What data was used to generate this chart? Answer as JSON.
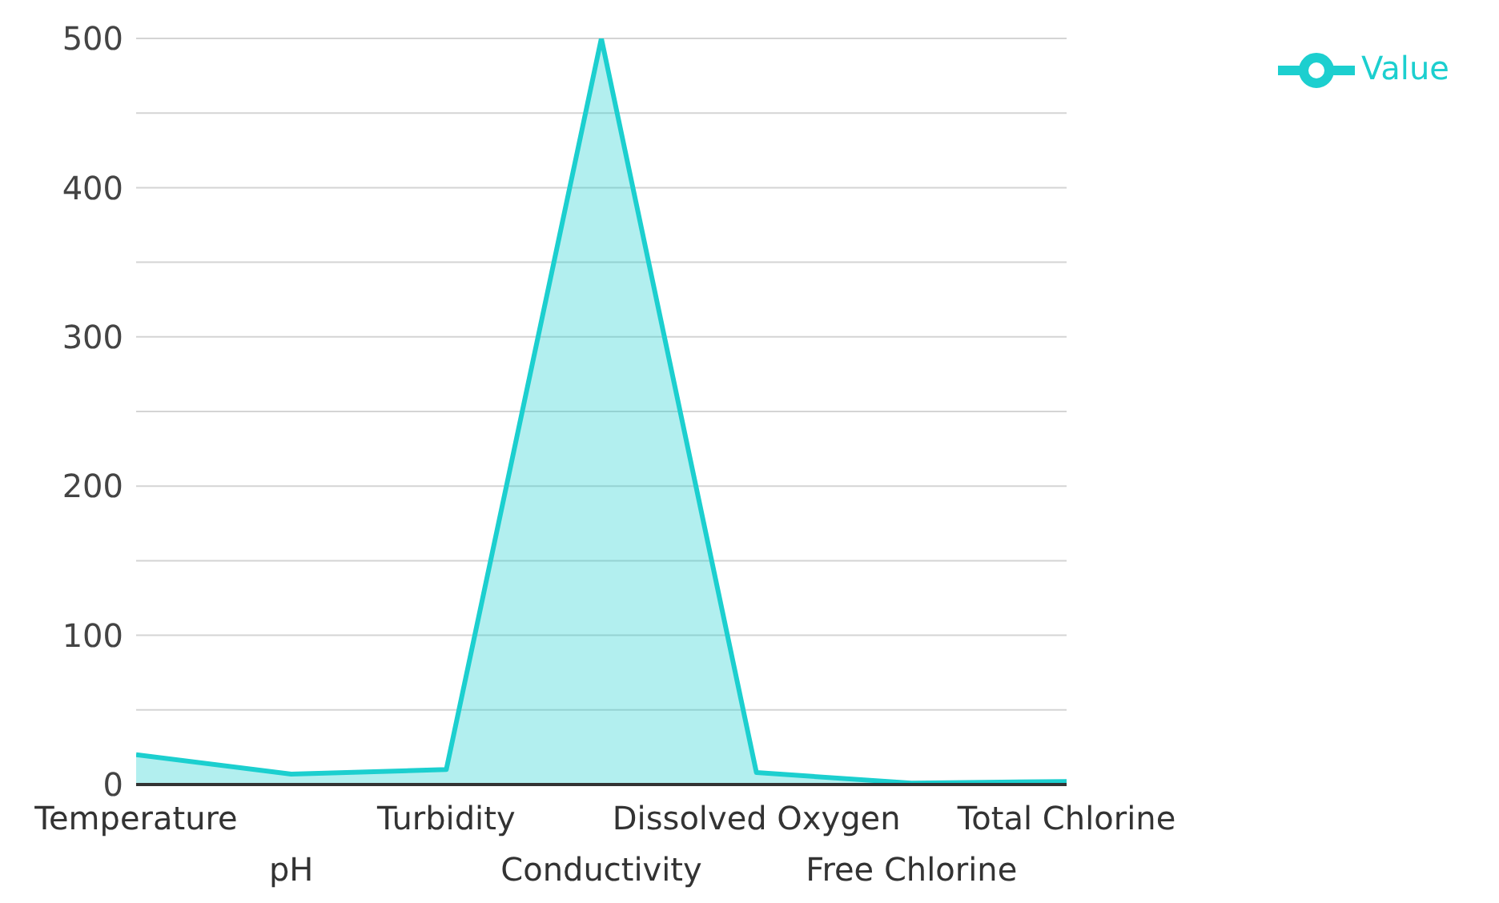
{
  "chart_data": {
    "type": "area",
    "categories": [
      "Temperature",
      "pH",
      "Turbidity",
      "Conductivity",
      "Dissolved Oxygen",
      "Free Chlorine",
      "Total Chlorine"
    ],
    "series": [
      {
        "name": "Value",
        "color": "#1ccfcf",
        "values": [
          20,
          7,
          10,
          500,
          8,
          1,
          2
        ]
      }
    ],
    "ylim": [
      0,
      500
    ],
    "yticks": [
      0,
      {
        "value": 50,
        "label": null
      },
      100,
      {
        "value": 150,
        "label": null
      },
      200,
      {
        "value": 250,
        "label": null
      },
      300,
      {
        "value": 350,
        "label": null
      },
      400,
      {
        "value": 450,
        "label": null
      },
      500
    ],
    "grid": "y",
    "legend": "top right"
  }
}
